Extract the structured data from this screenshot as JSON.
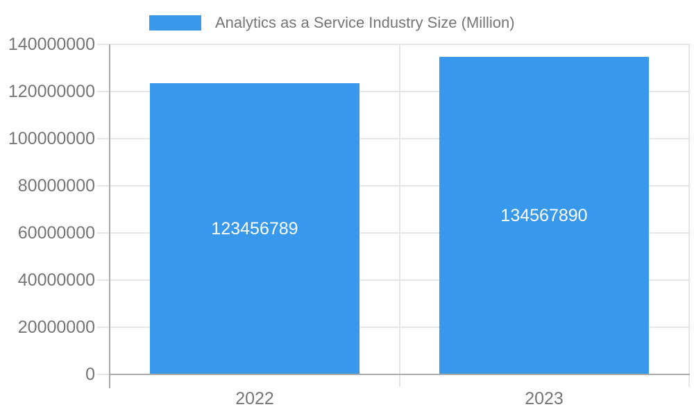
{
  "chart_data": {
    "type": "bar",
    "title": "Analytics as a Service Industry Size (Million)",
    "categories": [
      "2022",
      "2023"
    ],
    "values": [
      123456789,
      134567890
    ],
    "bar_labels": [
      "123456789",
      "134567890"
    ],
    "series": [
      {
        "name": "Analytics as a Service Industry Size (Million)",
        "values": [
          123456789,
          134567890
        ]
      }
    ],
    "xlabel": "",
    "ylabel": "",
    "ylim": [
      0,
      140000000
    ],
    "yticks": [
      0,
      20000000,
      40000000,
      60000000,
      80000000,
      100000000,
      120000000,
      140000000
    ],
    "ytick_labels": [
      "0",
      "20000000",
      "40000000",
      "60000000",
      "80000000",
      "100000000",
      "120000000",
      "140000000"
    ],
    "grid": "horizontal-on",
    "legend_position": "top-center"
  },
  "colors": {
    "bar": "#3898ec",
    "grid": "#e6e6e6",
    "axis": "#aaaaaa",
    "text": "#757575",
    "bar_label_text": "#ffffff",
    "background": "#ffffff"
  },
  "legend": {
    "swatch_icon": "blue-rect-swatch"
  }
}
